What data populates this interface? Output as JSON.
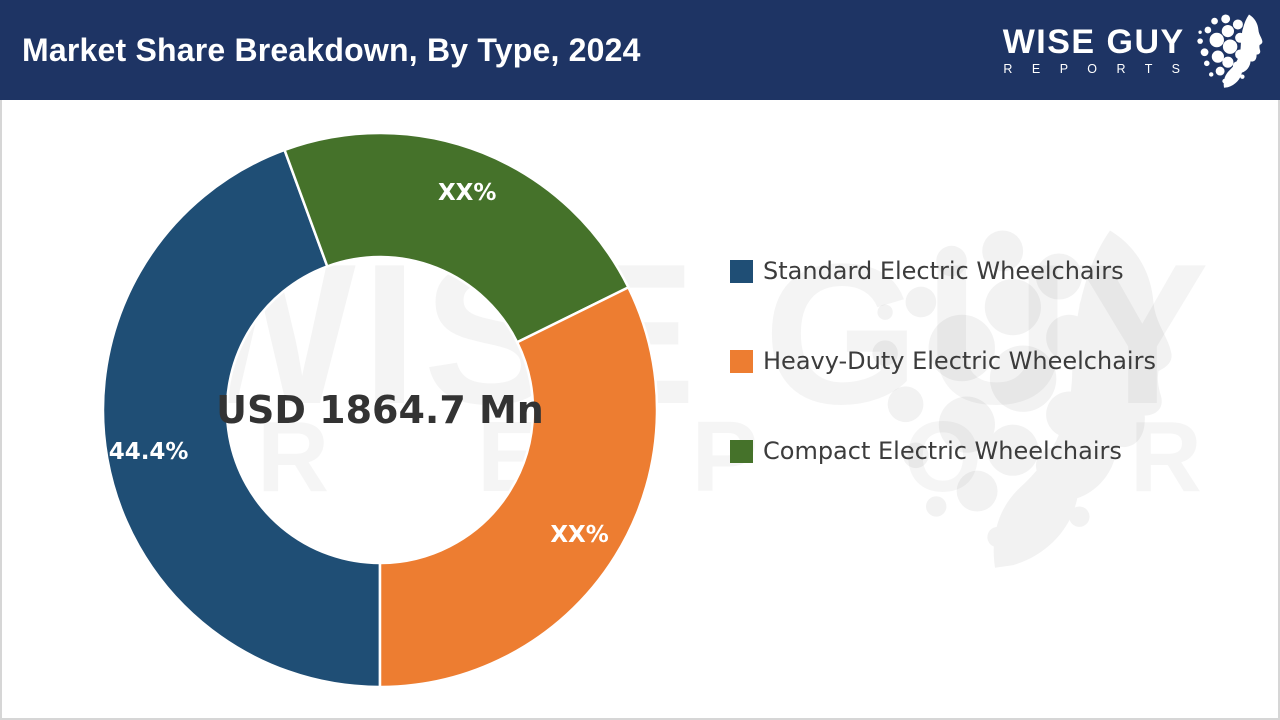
{
  "header": {
    "title": "Market Share Breakdown, By Type, 2024",
    "logo": {
      "line1": "WISE GUY",
      "line2": "R E P O R T S"
    }
  },
  "watermark": {
    "line1": "WISE GUY",
    "line2": "R E P O R T S"
  },
  "colors": {
    "header_navy": "#1e3464",
    "standard_blue": "#1f4e75",
    "heavy_duty_orange": "#ed7d31",
    "compact_green": "#45722a",
    "center_text": "#333333",
    "legend_text": "#3c3c3c",
    "border_gray": "#d6d6d6"
  },
  "chart_data": {
    "type": "pie",
    "subtype": "donut",
    "title": "Market Share Breakdown, By Type, 2024",
    "center_label": "USD 1864.7 Mn",
    "start_angle_deg": 180,
    "direction": "clockwise",
    "legend_position": "right",
    "series": [
      {
        "id": "standard",
        "name": "Standard Electric Wheelchairs",
        "value_pct": 44.4,
        "label": "44.4%",
        "color": "#1f4e75"
      },
      {
        "id": "compact",
        "name": "Compact Electric Wheelchairs",
        "value_pct": 23.3,
        "label": "XX%",
        "color": "#45722a"
      },
      {
        "id": "heavy-duty",
        "name": "Heavy-Duty Electric Wheelchairs",
        "value_pct": 32.3,
        "label": "XX%",
        "color": "#ed7d31"
      }
    ],
    "legend": [
      {
        "id": "standard",
        "name": "Standard Electric Wheelchairs",
        "color": "#1f4e75"
      },
      {
        "id": "heavy-duty",
        "name": "Heavy-Duty Electric Wheelchairs",
        "color": "#ed7d31"
      },
      {
        "id": "compact",
        "name": "Compact Electric Wheelchairs",
        "color": "#45722a"
      }
    ]
  }
}
